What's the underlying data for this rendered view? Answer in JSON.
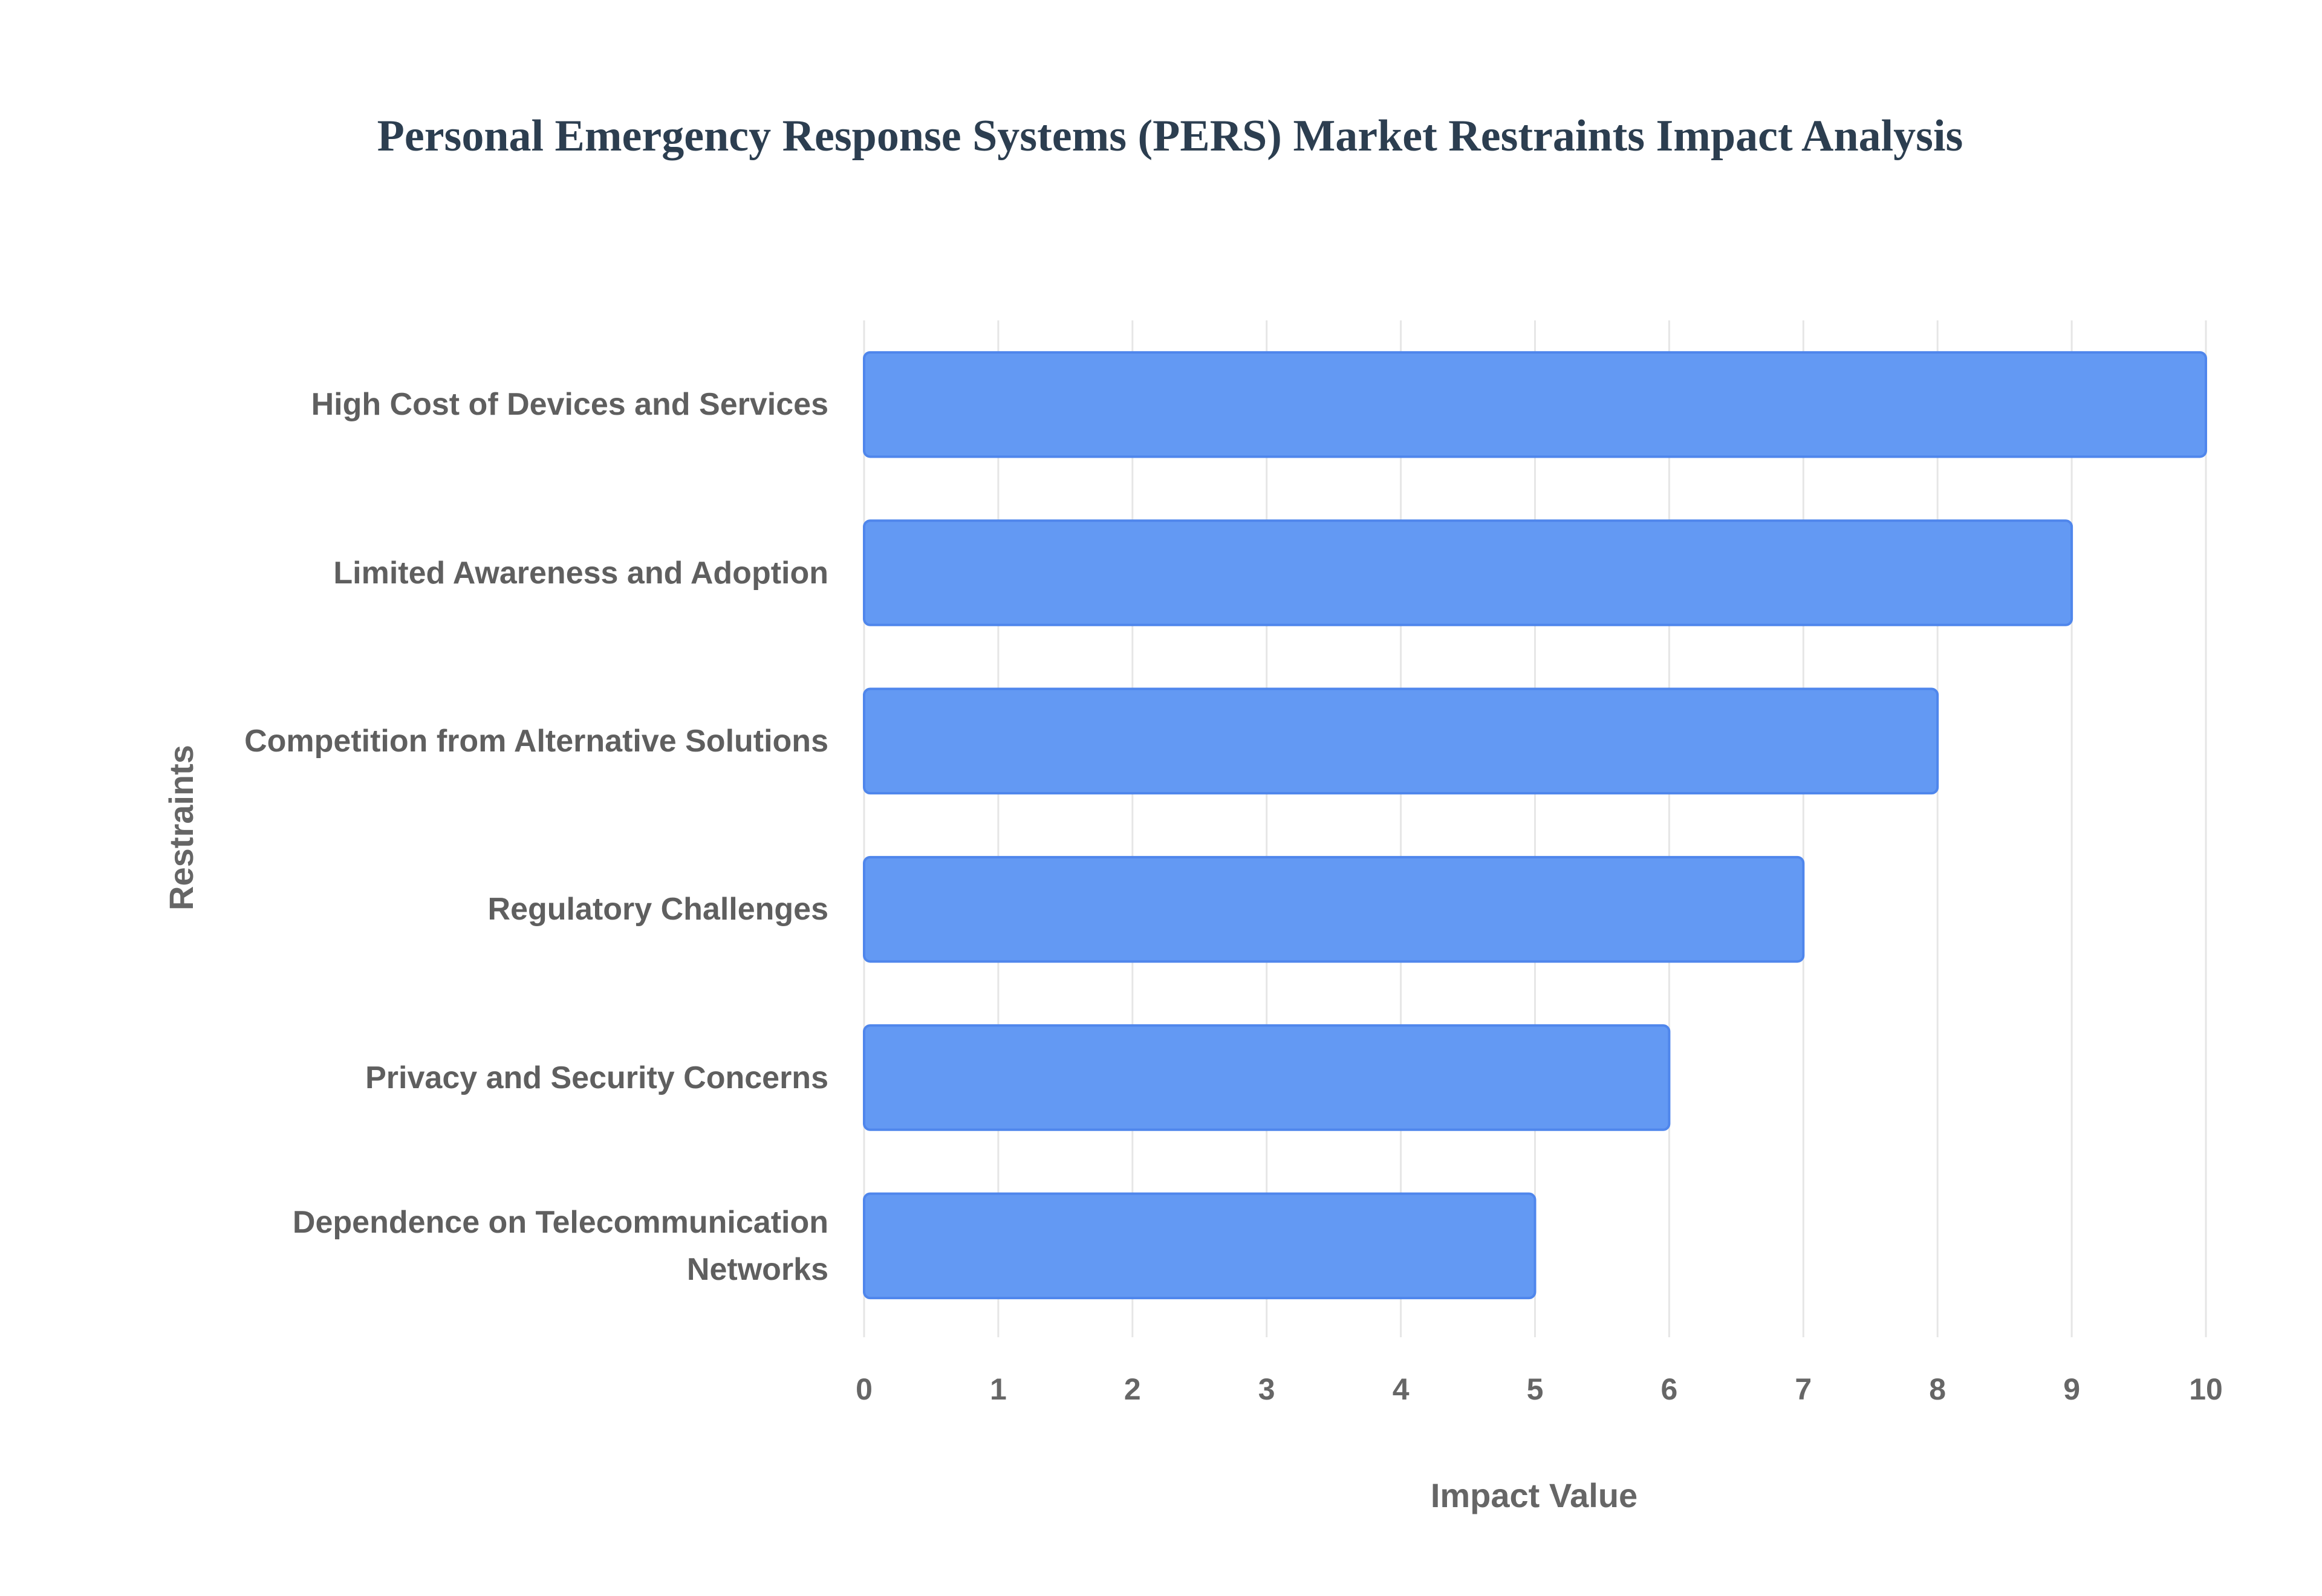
{
  "chart_data": {
    "type": "bar",
    "orientation": "horizontal",
    "title": "Personal Emergency Response Systems (PERS) Market Restraints Impact Analysis",
    "categories": [
      "High Cost of Devices and Services",
      "Limited Awareness and Adoption",
      "Competition from Alternative Solutions",
      "Regulatory Challenges",
      "Privacy and Security Concerns",
      "Dependence on Telecommunication Networks"
    ],
    "values": [
      10,
      9,
      8,
      7,
      6,
      5
    ],
    "color": "#6399f3",
    "x_label": "Impact Value",
    "y_label": "Restraints",
    "xlim": [
      0,
      10
    ],
    "xticks": [
      0,
      1,
      2,
      3,
      4,
      5,
      6,
      7,
      8,
      9,
      10
    ],
    "grid": true
  }
}
